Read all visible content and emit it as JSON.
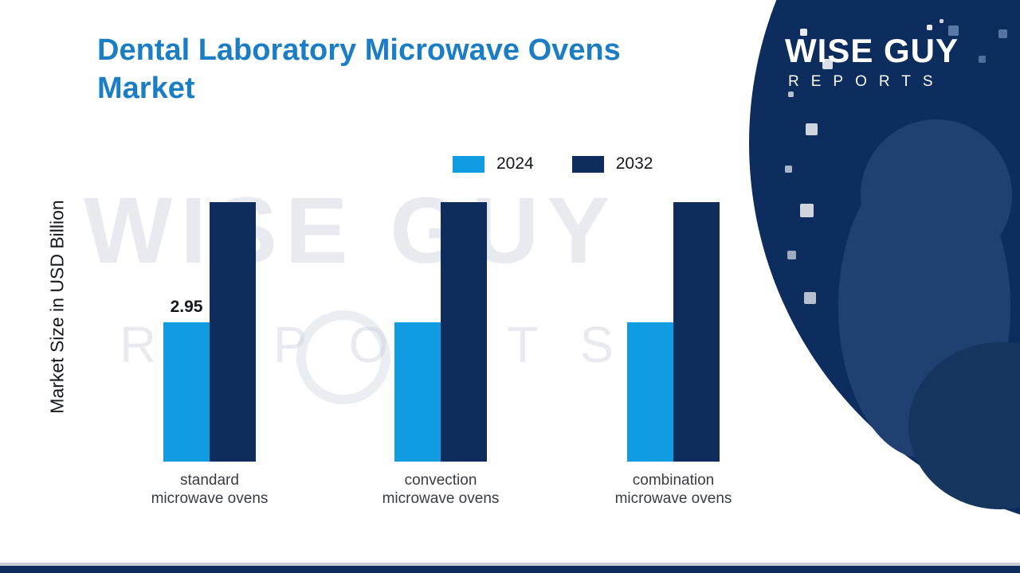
{
  "header": {
    "title": "Dental Laboratory Microwave Ovens Market"
  },
  "logo": {
    "primary": "WISE GUY",
    "secondary": "REPORTS"
  },
  "watermark": {
    "primary": "WISE GUY",
    "secondary": "REPORTS"
  },
  "axis": {
    "y_label": "Market Size in USD Billion"
  },
  "legend": {
    "items": [
      {
        "label": "2024",
        "color": "#119be1"
      },
      {
        "label": "2032",
        "color": "#0e2d5c"
      }
    ]
  },
  "chart_data": {
    "type": "bar",
    "title": "Dental Laboratory Microwave Ovens Market",
    "xlabel": "",
    "ylabel": "Market Size in USD Billion",
    "categories": [
      "standard microwave ovens",
      "convection microwave ovens",
      "combination microwave ovens"
    ],
    "series": [
      {
        "name": "2024",
        "color": "#119be1",
        "values": [
          2.95,
          2.95,
          2.95
        ],
        "value_labels": [
          "2.95",
          "",
          ""
        ]
      },
      {
        "name": "2032",
        "color": "#0e2d5c",
        "values": [
          5.5,
          5.5,
          5.5
        ],
        "value_labels": [
          "",
          "",
          ""
        ]
      }
    ],
    "ylim": [
      0,
      6
    ],
    "grid": false,
    "legend_position": "top-center"
  },
  "colors": {
    "title_blue": "#1b7dc3",
    "bar_2024": "#119be1",
    "bar_2032": "#0e2d5c",
    "corner_navy": "#0d2d5e",
    "footer_navy": "#0e2d5c",
    "watermark_gray": "#cbd1dd"
  }
}
